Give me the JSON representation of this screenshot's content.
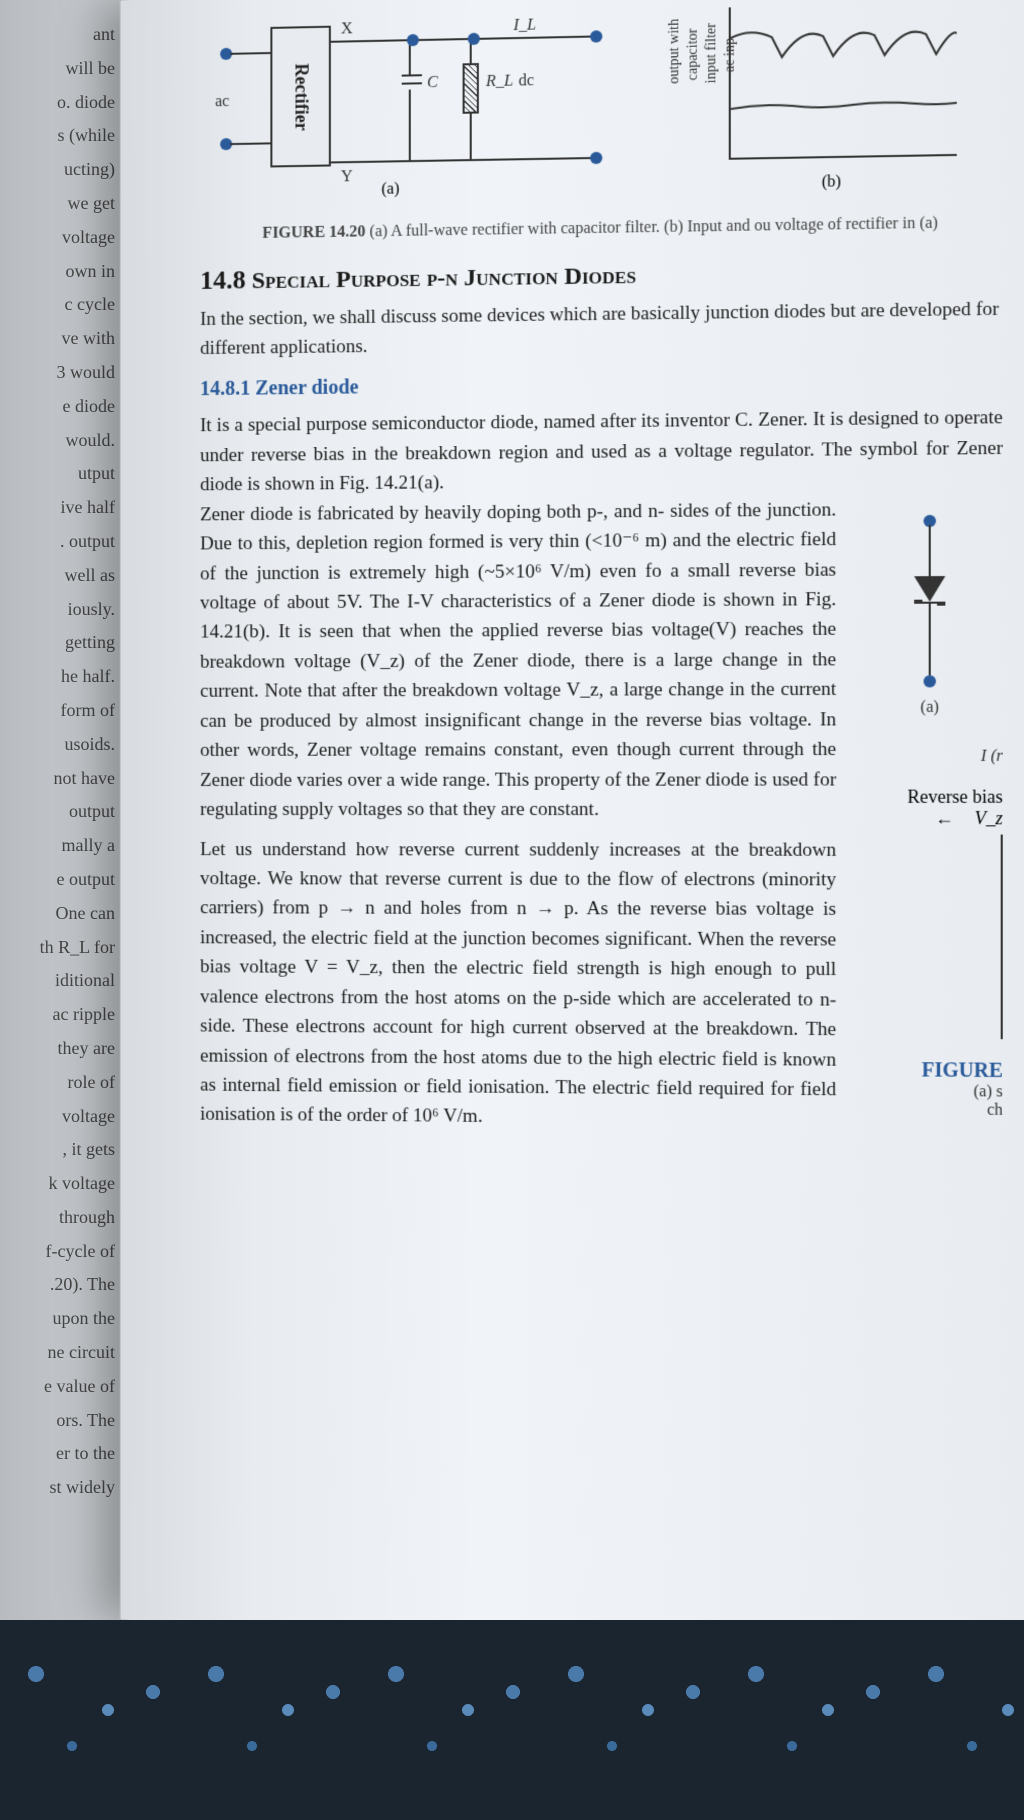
{
  "spine_words": [
    "ant",
    "will be",
    "o. diode",
    "s (while",
    "ucting)",
    "we get",
    "voltage",
    "own in",
    "c cycle",
    "ve with",
    "3 would",
    "e diode",
    "would.",
    "utput",
    "ive half",
    ". output",
    "well as",
    "iously.",
    "getting",
    "he half.",
    "form of",
    "usoids.",
    "not have",
    "output",
    "mally a",
    "e output",
    "One can",
    "th R_L for",
    "iditional",
    "ac ripple",
    "they are",
    "role of",
    "voltage",
    ", it gets",
    "k voltage",
    "through",
    "f-cycle of",
    ".20). The",
    "upon the",
    "ne circuit",
    "e value of",
    "ors. The",
    "er to the",
    "st widely"
  ],
  "circuit": {
    "rectifier_label": "Rectifier",
    "ac_label": "ac",
    "c_label": "C",
    "rl_label": "R_L",
    "dc_label": "dc",
    "il_label": "I_L",
    "x_label": "X",
    "y_label": "Y",
    "fig_a": "(a)",
    "fig_b": "(b)",
    "output_labels": [
      "output with",
      "capacitor",
      "input filter",
      "ac inp"
    ]
  },
  "caption": {
    "bold": "FIGURE 14.20",
    "text": "(a) A full-wave rectifier with capacitor filter. (b) Input and ou voltage of rectifier in (a)"
  },
  "section": {
    "number": "14.8",
    "title": "Special Purpose p-n Junction Diodes"
  },
  "intro": "In the section, we shall discuss some devices which are basically junction diodes but are developed for different applications.",
  "subsection": {
    "number": "14.8.1",
    "title": "Zener diode"
  },
  "body_p1": "It is a special purpose semiconductor diode, named after its inventor C. Zener. It is designed to operate under reverse bias in the breakdown region and used as a voltage regulator. The symbol for Zener diode is shown in Fig. 14.21(a).",
  "body_p2": "Zener diode is fabricated by heavily doping both p-, and n- sides of the junction. Due to this, depletion region formed is very thin (<10⁻⁶ m) and the electric field of the junction is extremely high (~5×10⁶ V/m) even fo  a small reverse bias voltage of about 5V. The I-V characteristics of a Zener diode is shown in Fig. 14.21(b). It is seen that when the applied reverse bias voltage(V) reaches the breakdown voltage (V_z) of the Zener diode, there is a large change in the current. Note that after the breakdown voltage V_z, a large change in the current can be produced by almost insignificant change in the reverse bias voltage. In other words, Zener voltage remains constant, even though current through the Zener diode varies over a wide range. This property of the Zener diode is used for regulating supply voltages so that they are constant.",
  "body_p3": "Let us understand how reverse current suddenly increases at the breakdown voltage. We know that reverse current is due to the flow of electrons (minority carriers) from p → n and holes from n → p. As the reverse bias voltage is increased, the electric field at the junction becomes significant. When the reverse bias voltage V = V_z, then the electric field strength is high enough to pull valence electrons from the host atoms on the p-side which are accelerated to n-side. These electrons account for high current observed at the breakdown. The emission of electrons from the host atoms due to the high electric field is known as internal field emission or field ionisation. The electric field required for field ionisation is of the order of 10⁶ V/m.",
  "side_fig": {
    "label_a": "(a)",
    "i_label": "I (r",
    "reverse_bias": "Reverse bias",
    "vz": "V_z",
    "figure": "FIGURE",
    "sub_a": "(a) s",
    "sub_ch": "ch"
  },
  "colors": {
    "page_bg": "#e8ecf0",
    "text": "#1a1a1a",
    "heading_blue": "#2a5a9a",
    "node_blue": "#2a5a9a",
    "circuit_line": "#333333"
  }
}
